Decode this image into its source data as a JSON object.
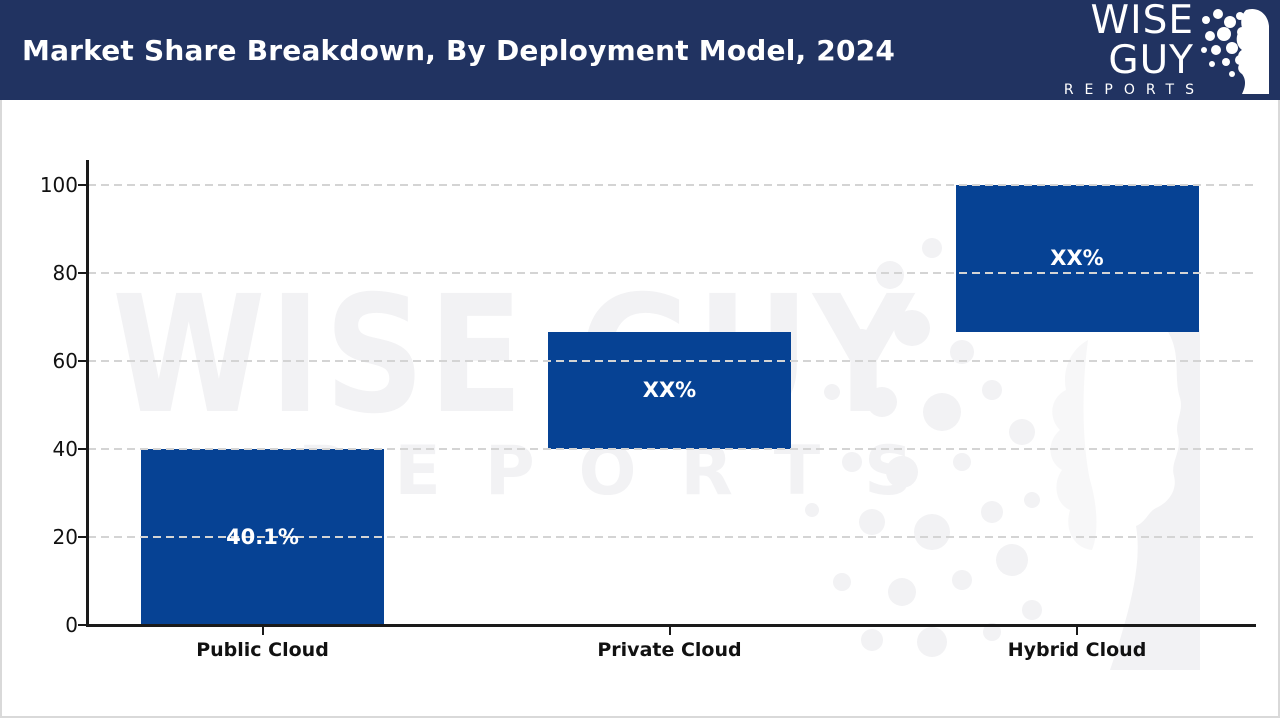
{
  "header": {
    "title": "Market Share Breakdown, By Deployment Model, 2024",
    "logo": {
      "line1": "WISE GUY",
      "line2": "REPORTS"
    }
  },
  "watermark": {
    "line1": "WISE GUY",
    "line2": "REPORTS"
  },
  "chart_data": {
    "type": "bar",
    "subtype": "stacked-waterfall",
    "title": "Market Share Breakdown, By Deployment Model, 2024",
    "categories": [
      "Public Cloud",
      "Private Cloud",
      "Hybrid Cloud"
    ],
    "segments": [
      {
        "category": "Public Cloud",
        "start": 0,
        "end": 40.1,
        "value": 40.1,
        "label": "40.1%"
      },
      {
        "category": "Private Cloud",
        "start": 40.1,
        "end": 66.7,
        "value": 26.6,
        "label": "XX%"
      },
      {
        "category": "Hybrid Cloud",
        "start": 66.7,
        "end": 100,
        "value": 33.3,
        "label": "XX%"
      }
    ],
    "xlabel": "",
    "ylabel": "",
    "ylim": [
      0,
      100
    ],
    "yticks": [
      0,
      20,
      40,
      60,
      80,
      100
    ],
    "grid": "horizontal-dashed",
    "legend": "none",
    "bar_color": "#064294"
  },
  "colors": {
    "header_bg": "#213361",
    "bar": "#064294",
    "gridline": "#d4d4d4",
    "axis": "#1a1a1a",
    "watermark": "#f2f2f4",
    "frame_border": "#d9d9d9",
    "title_text": "#ffffff",
    "bar_label_text": "#ffffff"
  }
}
